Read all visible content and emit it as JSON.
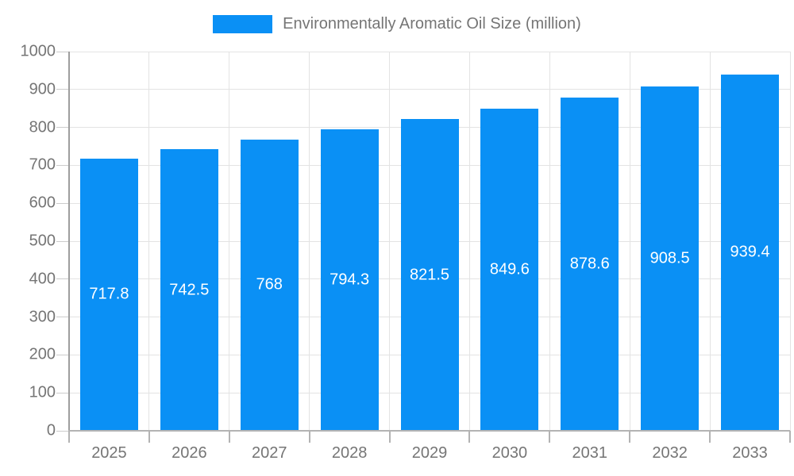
{
  "legend": {
    "label": "Environmentally Aromatic Oil Size (million)"
  },
  "chart_data": {
    "type": "bar",
    "title": "Environmentally Aromatic Oil Size (million)",
    "categories": [
      "2025",
      "2026",
      "2027",
      "2028",
      "2029",
      "2030",
      "2031",
      "2032",
      "2033"
    ],
    "values": [
      717.8,
      742.5,
      768,
      794.3,
      821.5,
      849.6,
      878.6,
      908.5,
      939.4
    ],
    "value_labels": [
      "717.8",
      "742.5",
      "768",
      "794.3",
      "821.5",
      "849.6",
      "878.6",
      "908.5",
      "939.4"
    ],
    "xlabel": "",
    "ylabel": "",
    "ylim": [
      0,
      1000
    ],
    "ytick_step": 100,
    "ytick_labels": [
      "0",
      "100",
      "200",
      "300",
      "400",
      "500",
      "600",
      "700",
      "800",
      "900",
      "1000"
    ],
    "grid": true,
    "legend_position": "top",
    "colors": {
      "bar": "#0a90f5",
      "value_label": "#ffffff",
      "axis_text": "#757575",
      "gridline": "#e3e3e3",
      "tick": "#cccccc",
      "y_axis_line": "#9e9e9e",
      "x_axis_line": "#b3b3b3"
    }
  }
}
